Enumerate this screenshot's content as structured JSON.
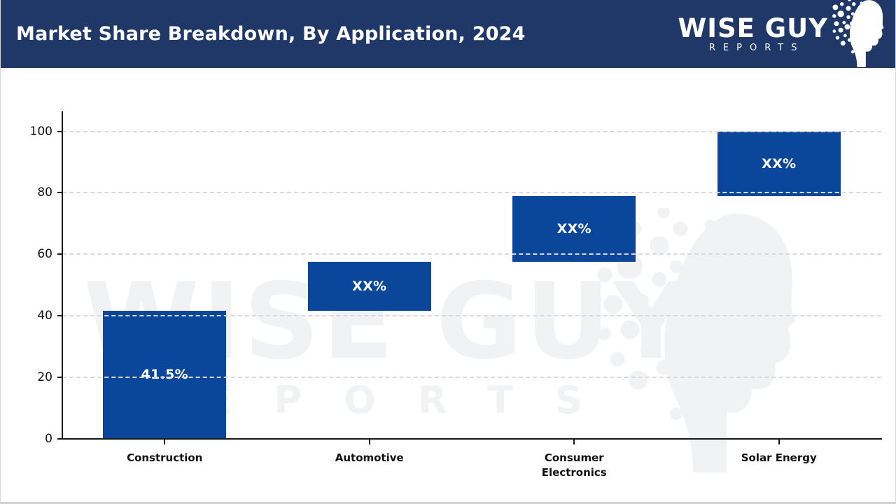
{
  "header": {
    "title": "Market Share Breakdown, By Application, 2024",
    "logo": {
      "line1": "WISE GUY",
      "line2": "REPORTS"
    }
  },
  "watermark": {
    "line1": "WISE GUY",
    "line2": "REPORTS"
  },
  "colors": {
    "header_bg": "#1f3868",
    "bar": "#0a479b",
    "gridline": "#d9d9d9",
    "watermark": "#f1f2f4",
    "axis": "#1a1a1a",
    "bar_label": "#ffffff"
  },
  "chart_data": {
    "type": "bar",
    "subtype": "waterfall-floating-bars",
    "title": "Market Share Breakdown, By Application, 2024",
    "categories": [
      "Construction",
      "Automotive",
      "Consumer Electronics",
      "Solar Energy"
    ],
    "segments": [
      {
        "category": "Construction",
        "start": 0,
        "end": 41.5,
        "label": "41.5%"
      },
      {
        "category": "Automotive",
        "start": 41.5,
        "end": 57.5,
        "label": "XX%"
      },
      {
        "category": "Consumer Electronics",
        "start": 57.5,
        "end": 79,
        "label": "XX%"
      },
      {
        "category": "Solar Energy",
        "start": 79,
        "end": 100,
        "label": "XX%"
      }
    ],
    "xlabel": "",
    "ylabel": "",
    "ylim": [
      0,
      100
    ],
    "yticks": [
      0,
      20,
      40,
      60,
      80,
      100
    ],
    "grid": "horizontal-dashed",
    "legend": "none"
  }
}
